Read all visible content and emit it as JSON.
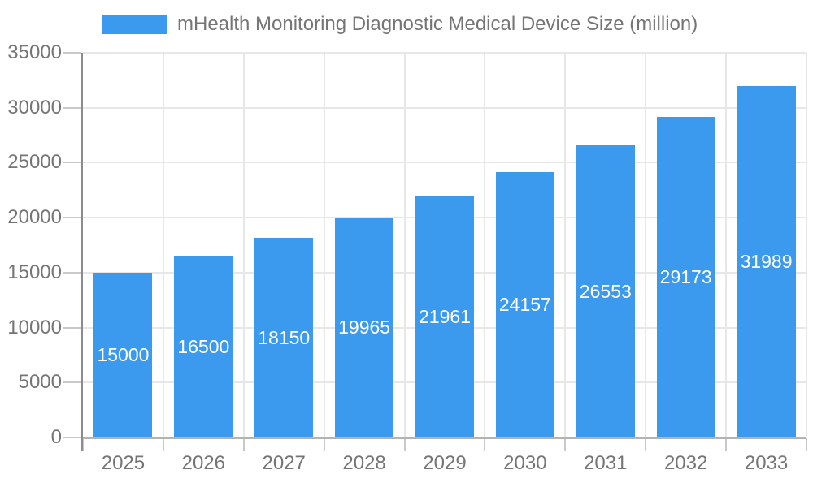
{
  "chart_data": {
    "type": "bar",
    "title": "mHealth Monitoring Diagnostic Medical Device Size (million)",
    "categories": [
      "2025",
      "2026",
      "2027",
      "2028",
      "2029",
      "2030",
      "2031",
      "2032",
      "2033"
    ],
    "values": [
      15000,
      16500,
      18150,
      19965,
      21961,
      24157,
      26553,
      29173,
      31989
    ],
    "value_labels": [
      "15000",
      "16500",
      "18150",
      "19965",
      "21961",
      "24157",
      "26553",
      "29173",
      "31989"
    ],
    "xlabel": "",
    "ylabel": "",
    "ylim": [
      0,
      35000
    ],
    "y_ticks": [
      0,
      5000,
      10000,
      15000,
      20000,
      25000,
      30000,
      35000
    ],
    "y_tick_labels": [
      "0",
      "5000",
      "10000",
      "15000",
      "20000",
      "25000",
      "30000",
      "35000"
    ],
    "grid": true,
    "legend_position": "top",
    "series_name": "mHealth Monitoring Diagnostic Medical Device Size (million)"
  },
  "colors": {
    "bar": "#3B99EE",
    "bar_value_text": "#ffffff",
    "axis_text": "#757575",
    "legend_text": "#757575",
    "gridline": "#e7e7e7",
    "tick": "#c9c9c9",
    "y_axis_line": "#8c8c8c",
    "x_axis_line": "#b3b3b3",
    "background": "#ffffff"
  }
}
